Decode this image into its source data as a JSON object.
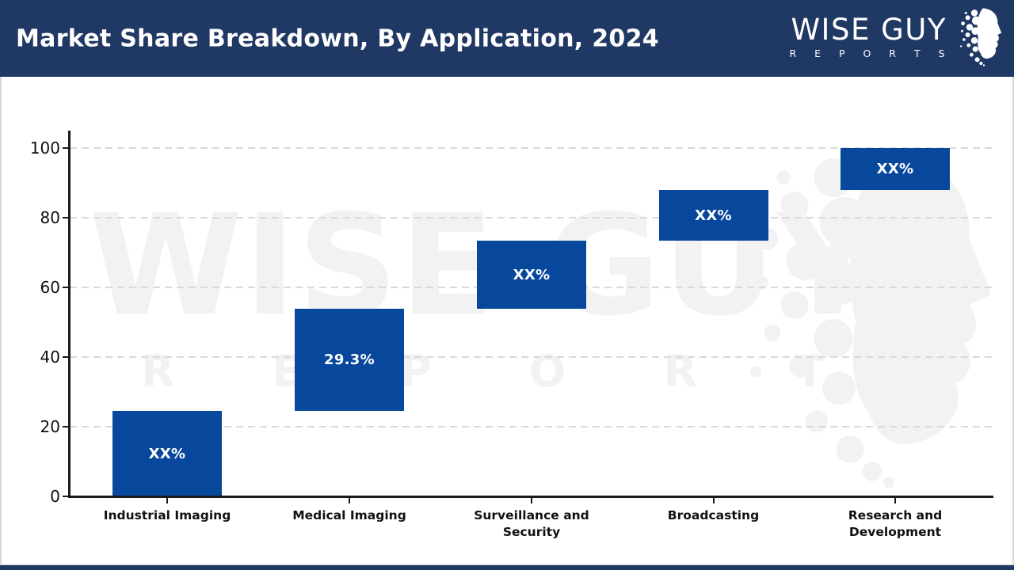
{
  "header": {
    "title": "Market Share Breakdown, By Application, 2024",
    "background_color": "#203864",
    "logo": {
      "line1": "WISE GUY",
      "line2": "R E P O R T S"
    }
  },
  "watermark": {
    "line1": "WISE GUY",
    "line2": "R E P O R T S"
  },
  "chart_data": {
    "type": "bar",
    "variant": "waterfall",
    "title": "Market Share Breakdown, By Application, 2024",
    "categories": [
      "Industrial Imaging",
      "Medical Imaging",
      "Surveillance and Security",
      "Broadcasting",
      "Research and Development"
    ],
    "values": [
      24.5,
      29.3,
      19.5,
      14.7,
      12.0
    ],
    "segment_starts": [
      0,
      24.5,
      53.8,
      73.3,
      88.0
    ],
    "segment_ends": [
      24.5,
      53.8,
      73.3,
      88.0,
      100.0
    ],
    "bar_labels": [
      "XX%",
      "29.3%",
      "XX%",
      "XX%",
      "XX%"
    ],
    "yticks": [
      0,
      20,
      40,
      60,
      80,
      100
    ],
    "ylim": [
      0,
      105
    ],
    "xlabel": "",
    "ylabel": "",
    "legend": "none",
    "grid": {
      "horizontal": true,
      "style": "dashed",
      "color": "#d9d9d9"
    },
    "bar_color": "#07489d",
    "bar_label_color": "#ffffff",
    "axis_color": "#1a1a1a"
  }
}
